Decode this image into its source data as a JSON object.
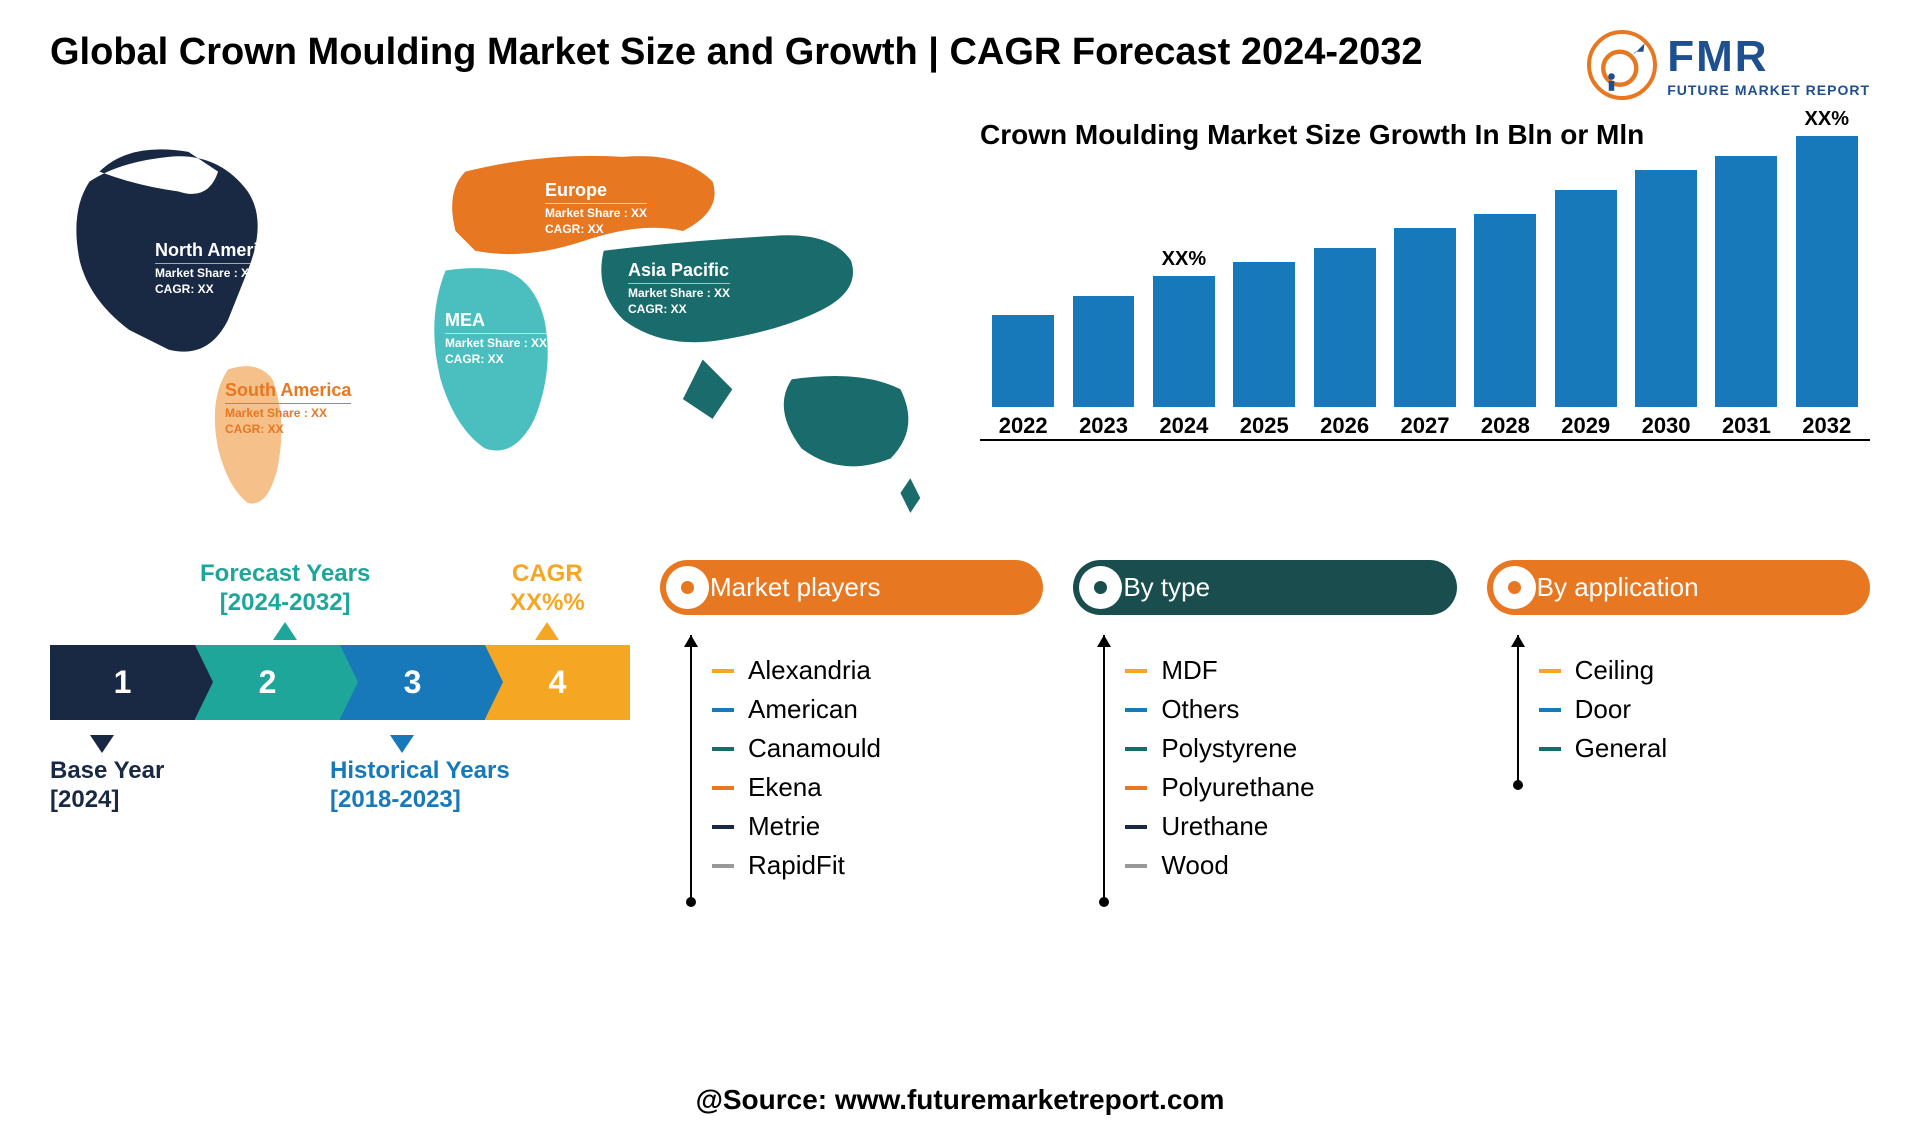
{
  "title": "Global Crown Moulding  Market Size and Growth | CAGR Forecast 2024-2032",
  "logo": {
    "main": "FMR",
    "sub": "FUTURE MARKET REPORT"
  },
  "map": {
    "regions": [
      {
        "name": "North America",
        "share": "Market Share : XX",
        "cagr": "CAGR: XX",
        "color": "#1a2943"
      },
      {
        "name": "South America",
        "share": "Market Share : XX",
        "cagr": "CAGR: XX",
        "color": "#f5c089"
      },
      {
        "name": "Europe",
        "share": "Market Share : XX",
        "cagr": "CAGR: XX",
        "color": "#e87722"
      },
      {
        "name": "MEA",
        "share": "Market Share : XX",
        "cagr": "CAGR: XX",
        "color": "#4bbfc0"
      },
      {
        "name": "Asia Pacific",
        "share": "Market Share : XX",
        "cagr": "CAGR: XX",
        "color": "#1a6b6b"
      }
    ]
  },
  "bar_chart": {
    "title": "Crown Moulding Market Size Growth In Bln or Mln",
    "type": "bar",
    "years": [
      "2022",
      "2023",
      "2024",
      "2025",
      "2026",
      "2027",
      "2028",
      "2029",
      "2030",
      "2031",
      "2032"
    ],
    "values": [
      95,
      115,
      135,
      150,
      165,
      185,
      200,
      225,
      245,
      260,
      280
    ],
    "ylim": [
      0,
      290
    ],
    "bar_color": "#1779ba",
    "labels": {
      "2024": "XX%",
      "2032": "XX%"
    },
    "title_fontsize": 28,
    "year_fontsize": 22
  },
  "timeline": {
    "forecast": {
      "label": "Forecast Years",
      "range": "[2024-2032]",
      "color": "#1fa69a"
    },
    "cagr": {
      "label": "CAGR",
      "value": "XX%%",
      "color": "#f5a623"
    },
    "base": {
      "label": "Base Year",
      "range": "[2024]",
      "color": "#1a2943"
    },
    "historical": {
      "label": "Historical Years",
      "range": "[2018-2023]",
      "color": "#1779ba"
    },
    "steps": [
      "1",
      "2",
      "3",
      "4"
    ]
  },
  "categories": {
    "players": {
      "title": "Market players",
      "items": [
        "Alexandria",
        "American",
        "Canamould",
        "Ekena",
        "Metrie",
        "RapidFit"
      ],
      "tick_colors": [
        "#f5a623",
        "#1779ba",
        "#1a6b6b",
        "#e87722",
        "#1a2943",
        "#999"
      ]
    },
    "type": {
      "title": "By type",
      "items": [
        "MDF",
        "Others",
        "Polystyrene",
        "Polyurethane",
        "Urethane",
        "Wood"
      ],
      "tick_colors": [
        "#f5a623",
        "#1779ba",
        "#1a6b6b",
        "#e87722",
        "#1a2943",
        "#999"
      ]
    },
    "application": {
      "title": "By application",
      "items": [
        "Ceiling",
        "Door",
        "General"
      ],
      "tick_colors": [
        "#f5a623",
        "#1779ba",
        "#1a6b6b"
      ]
    }
  },
  "source": "@Source: www.futuremarketreport.com"
}
